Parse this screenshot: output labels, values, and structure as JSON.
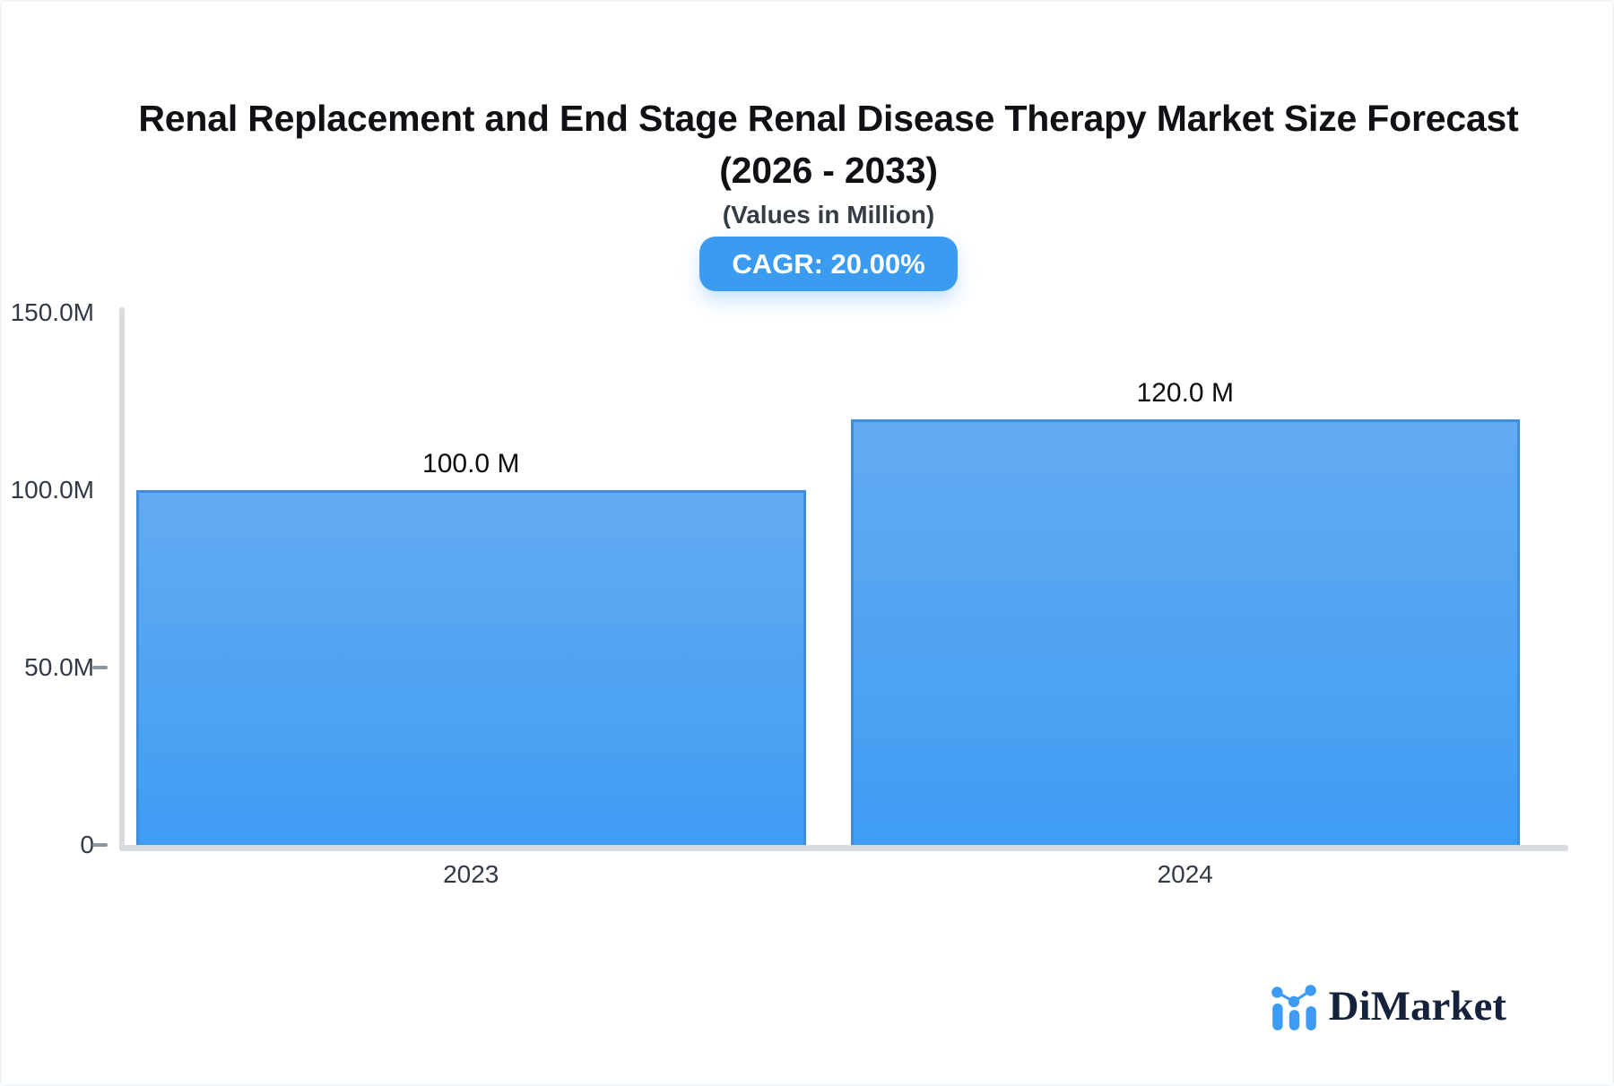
{
  "header": {
    "title_line1": "Renal Replacement and End Stage Renal Disease Therapy Market Size Forecast",
    "title_line2": "(2026 - 2033)",
    "subtitle": "(Values in Million)",
    "cagr_badge": "CAGR: 20.00%"
  },
  "branding": {
    "logo_text": "DiMarket"
  },
  "colors": {
    "accent_blue": "#3b9bf1",
    "bar_fill_top": "#63abf1",
    "bar_fill_bottom": "#3f9df4",
    "bar_stroke": "#3e8edd",
    "axis_gray": "#d7dadf",
    "logo_navy": "#15223b"
  },
  "chart_data": {
    "type": "bar",
    "title": "Renal Replacement and End Stage Renal Disease Therapy Market Size Forecast (2026 - 2033)",
    "subtitle": "(Values in Million)",
    "cagr": "20.00%",
    "categories": [
      "2023",
      "2024"
    ],
    "values": [
      100,
      120
    ],
    "bar_labels": [
      "100.0 M",
      "120.0 M"
    ],
    "unit": "Million (M)",
    "xlabel": "",
    "ylabel": "",
    "ylim": [
      0,
      150
    ],
    "yticks": [
      {
        "value": 150,
        "label": "150.0M",
        "dash": false
      },
      {
        "value": 100,
        "label": "100.0M",
        "dash": false
      },
      {
        "value": 50,
        "label": "50.0M",
        "dash": true
      },
      {
        "value": 0,
        "label": "0",
        "dash": true
      }
    ],
    "grid": false,
    "legend": false
  }
}
